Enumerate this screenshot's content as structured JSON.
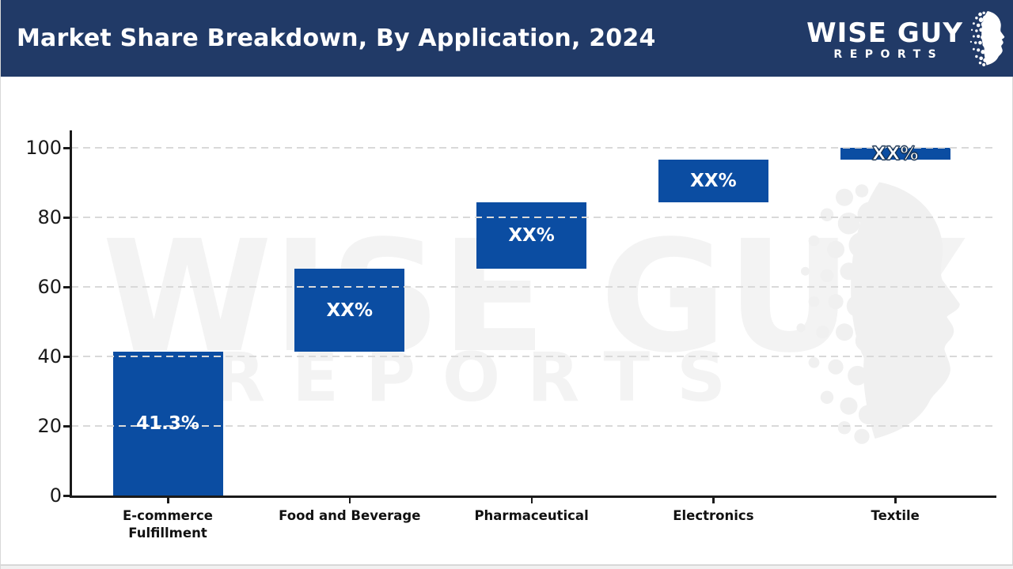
{
  "page": {
    "background": "#ffffff",
    "border_color": "#d8d8d8"
  },
  "header": {
    "background": "#213a67",
    "title": "Market Share Breakdown, By Application, 2024",
    "text_color": "#ffffff",
    "logo": {
      "line1": "WISE GUY",
      "line2": "REPORTS",
      "icon": "dotted-face-profile",
      "color": "#ffffff"
    }
  },
  "watermark": {
    "line1": "WISE GUY",
    "line2": "REPORTS",
    "icon": "dotted-face-profile",
    "color": "#f3f3f3"
  },
  "chart_data": {
    "type": "bar",
    "subtype": "waterfall",
    "title": "Market Share Breakdown, By Application, 2024",
    "xlabel": "",
    "ylabel": "",
    "categories": [
      "E-commerce Fulfillment",
      "Food and Beverage",
      "Pharmaceutical",
      "Electronics",
      "Textile"
    ],
    "tick_lines": [
      [
        "E-commerce",
        "Fulfillment"
      ],
      [
        "Food and Beverage"
      ],
      [
        "Pharmaceutical"
      ],
      [
        "Electronics"
      ],
      [
        "Textile"
      ]
    ],
    "segments": [
      {
        "category": "E-commerce Fulfillment",
        "start": 0,
        "end": 41.3,
        "label": "41.3%",
        "outlined": false
      },
      {
        "category": "Food and Beverage",
        "start": 41.3,
        "end": 65.2,
        "label": "XX%",
        "outlined": false
      },
      {
        "category": "Pharmaceutical",
        "start": 65.2,
        "end": 84.3,
        "label": "XX%",
        "outlined": false
      },
      {
        "category": "Electronics",
        "start": 84.3,
        "end": 96.5,
        "label": "XX%",
        "outlined": false
      },
      {
        "category": "Textile",
        "start": 96.5,
        "end": 100,
        "label": "XX%",
        "outlined": true
      }
    ],
    "values_estimated": [
      41.3,
      23.9,
      19.1,
      12.2,
      3.5
    ],
    "ylim": [
      0,
      105
    ],
    "yticks": [
      0,
      20,
      40,
      60,
      80,
      100
    ],
    "grid": {
      "axis": "y",
      "style": "dashed",
      "color": "#d9d9d9",
      "on_top_of_bars": true
    },
    "bar_color": "#0b4da2",
    "bar_label_color": "#ffffff",
    "axis_color": "#1a1a1a",
    "legend": null
  }
}
